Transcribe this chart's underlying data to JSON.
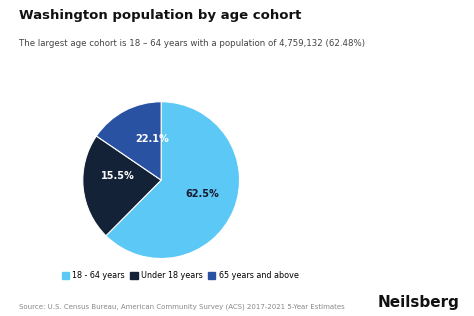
{
  "title": "Washington population by age cohort",
  "subtitle": "The largest age cohort is 18 – 64 years with a population of 4,759,132 (62.48%)",
  "slices": [
    62.5,
    22.1,
    15.5
  ],
  "labels": [
    "18 - 64 years",
    "Under 18 years",
    "65 years and above"
  ],
  "colors": [
    "#5BC8F5",
    "#132237",
    "#2952A3"
  ],
  "pct_labels": [
    "62.5%",
    "22.1%",
    "15.5%"
  ],
  "pct_colors": [
    "#1a1a2e",
    "#ffffff",
    "#ffffff"
  ],
  "source": "Source: U.S. Census Bureau, American Community Survey (ACS) 2017-2021 5-Year Estimates",
  "brand": "Neilsberg",
  "background_color": "#ffffff",
  "startangle": 90
}
